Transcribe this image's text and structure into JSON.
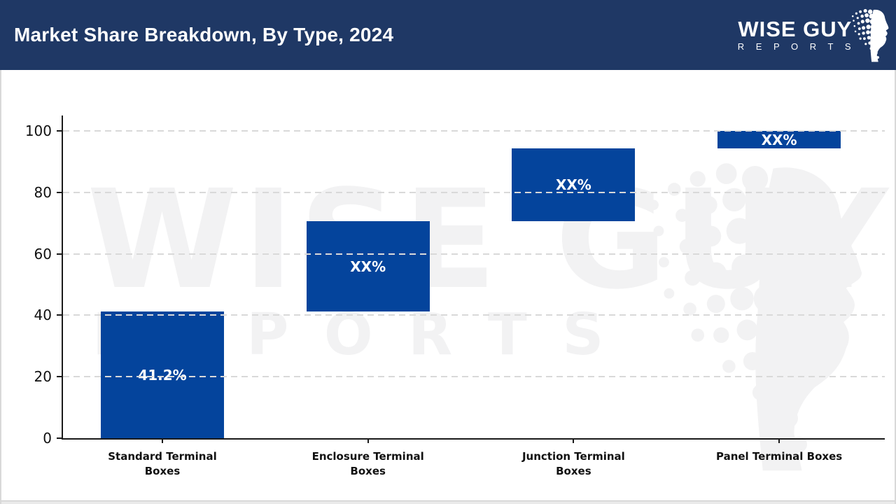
{
  "header": {
    "title": "Market Share Breakdown, By Type, 2024",
    "logo": {
      "line1": "WISE GUY",
      "line2": "R E P O R T S"
    }
  },
  "watermark": {
    "line1": "WISE GUY",
    "line2": "R E P O R T S"
  },
  "colors": {
    "header_bg": "#1F3865",
    "bar": "#04449C",
    "bar_label": "#FFFFFF",
    "gridline": "#D9D9D9",
    "axis": "#1A1A1A",
    "watermark": "#F2F2F3",
    "frame_border": "#D9D9D9"
  },
  "chart_data": {
    "type": "bar",
    "subtype": "waterfall",
    "title": "Market Share Breakdown, By Type, 2024",
    "categories": [
      "Standard Terminal Boxes",
      "Enclosure Terminal Boxes",
      "Junction Terminal Boxes",
      "Panel Terminal Boxes"
    ],
    "values": [
      41.2,
      29.4,
      23.7,
      5.7
    ],
    "cumulative": [
      [
        0,
        41.2
      ],
      [
        41.2,
        70.6
      ],
      [
        70.6,
        94.3
      ],
      [
        94.3,
        100
      ]
    ],
    "bar_labels": [
      "41.2%",
      "XX%",
      "XX%",
      "XX%"
    ],
    "ylim": [
      0,
      100
    ],
    "yticks": [
      0,
      20,
      40,
      60,
      80,
      100
    ],
    "xlabel": "",
    "ylabel": "",
    "legend": "none",
    "grid": {
      "axis": "y",
      "style": "dashed"
    },
    "bar_color": "#04449C",
    "bar_label_color": "#FFFFFF"
  }
}
